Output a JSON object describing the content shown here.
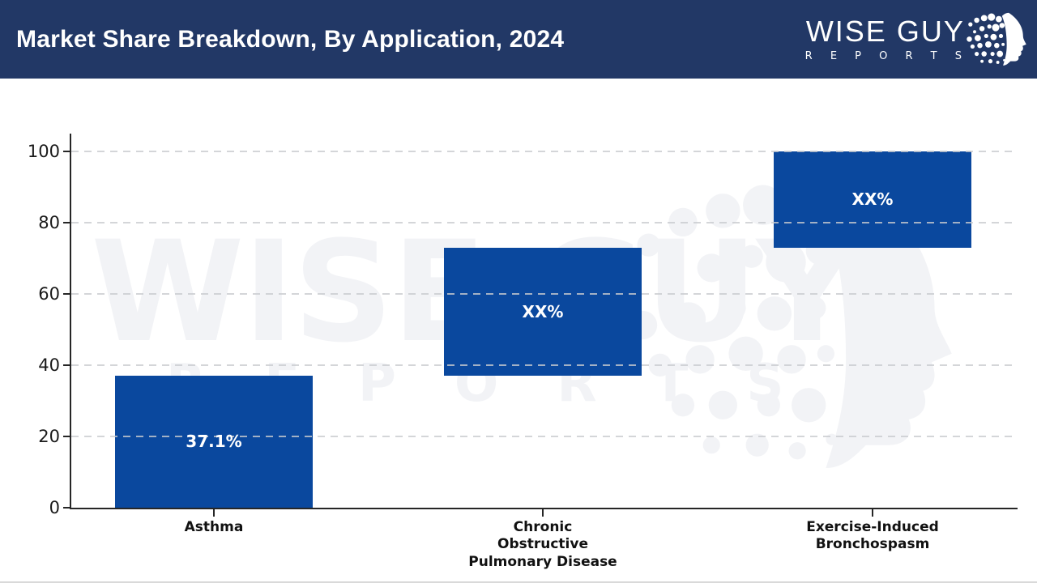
{
  "header": {
    "title": "Market Share Breakdown, By Application, 2024",
    "logo": {
      "line1": "WISE GUY",
      "line2": "R E P O R T S"
    }
  },
  "watermark": {
    "line1": "WISE GUY",
    "line2": "REPORTS"
  },
  "chart_data": {
    "type": "bar",
    "variant": "floating-waterfall-segments",
    "title": "Market Share Breakdown, By Application, 2024",
    "categories": [
      "Asthma",
      "Chronic Obstructive Pulmonary Disease",
      "Exercise-Induced Bronchospasm"
    ],
    "categories_display": [
      "Asthma",
      "Chronic\nObstructive\nPulmonary Disease",
      "Exercise-Induced\nBronchospasm"
    ],
    "segments": [
      {
        "category": "Asthma",
        "start": 0,
        "end": 37.1,
        "label": "37.1%"
      },
      {
        "category": "Chronic Obstructive Pulmonary Disease",
        "start": 37.1,
        "end": 73,
        "label": "XX%"
      },
      {
        "category": "Exercise-Induced Bronchospasm",
        "start": 73,
        "end": 100,
        "label": "XX%"
      }
    ],
    "xlabel": "",
    "ylabel": "",
    "ylim": [
      0,
      100
    ],
    "yticks": [
      0,
      20,
      40,
      60,
      80,
      100
    ],
    "grid": "horizontal-dashed",
    "legend": "none"
  },
  "colors": {
    "header_bg": "#223866",
    "bar": "#0a489e",
    "bar_label": "#ffffff",
    "grid": "#d9d9d9",
    "axis": "#262626",
    "tick_text": "#1a1a1a",
    "watermark": "#f2f3f6",
    "title_text": "#ffffff"
  }
}
